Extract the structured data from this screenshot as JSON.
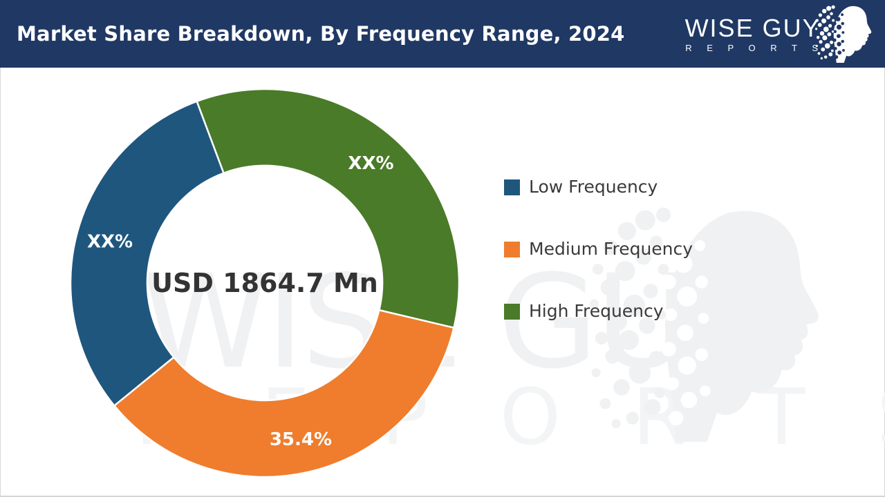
{
  "header": {
    "title": "Market Share Breakdown, By Frequency Range, 2024",
    "bg_color": "#203864",
    "logo": {
      "line1": "WISE GUY",
      "line2": "R E P O R T S"
    }
  },
  "watermark": {
    "line1": "WISE GUY",
    "line2": "R E P O R T S"
  },
  "chart_data": {
    "type": "pie",
    "subtype": "donut",
    "title": "Market Share Breakdown, By Frequency Range, 2024",
    "center_label": "USD 1864.7 Mn",
    "start_angle_deg": 110.5,
    "direction": "counterclockwise",
    "inner_radius_ratio": 0.6,
    "legend_position": "right",
    "values_masked_note": "Low and High Frequency shares are masked as XX% in the image; percentages below are estimated from arc angles",
    "segments": [
      {
        "label": "Low Frequency",
        "value_pct": 30.2,
        "display_label": "XX%",
        "color": "#1f567e"
      },
      {
        "label": "Medium Frequency",
        "value_pct": 35.4,
        "display_label": "35.4%",
        "color": "#ef7d2d"
      },
      {
        "label": "High Frequency",
        "value_pct": 34.4,
        "display_label": "XX%",
        "color": "#4a7b28"
      }
    ]
  }
}
